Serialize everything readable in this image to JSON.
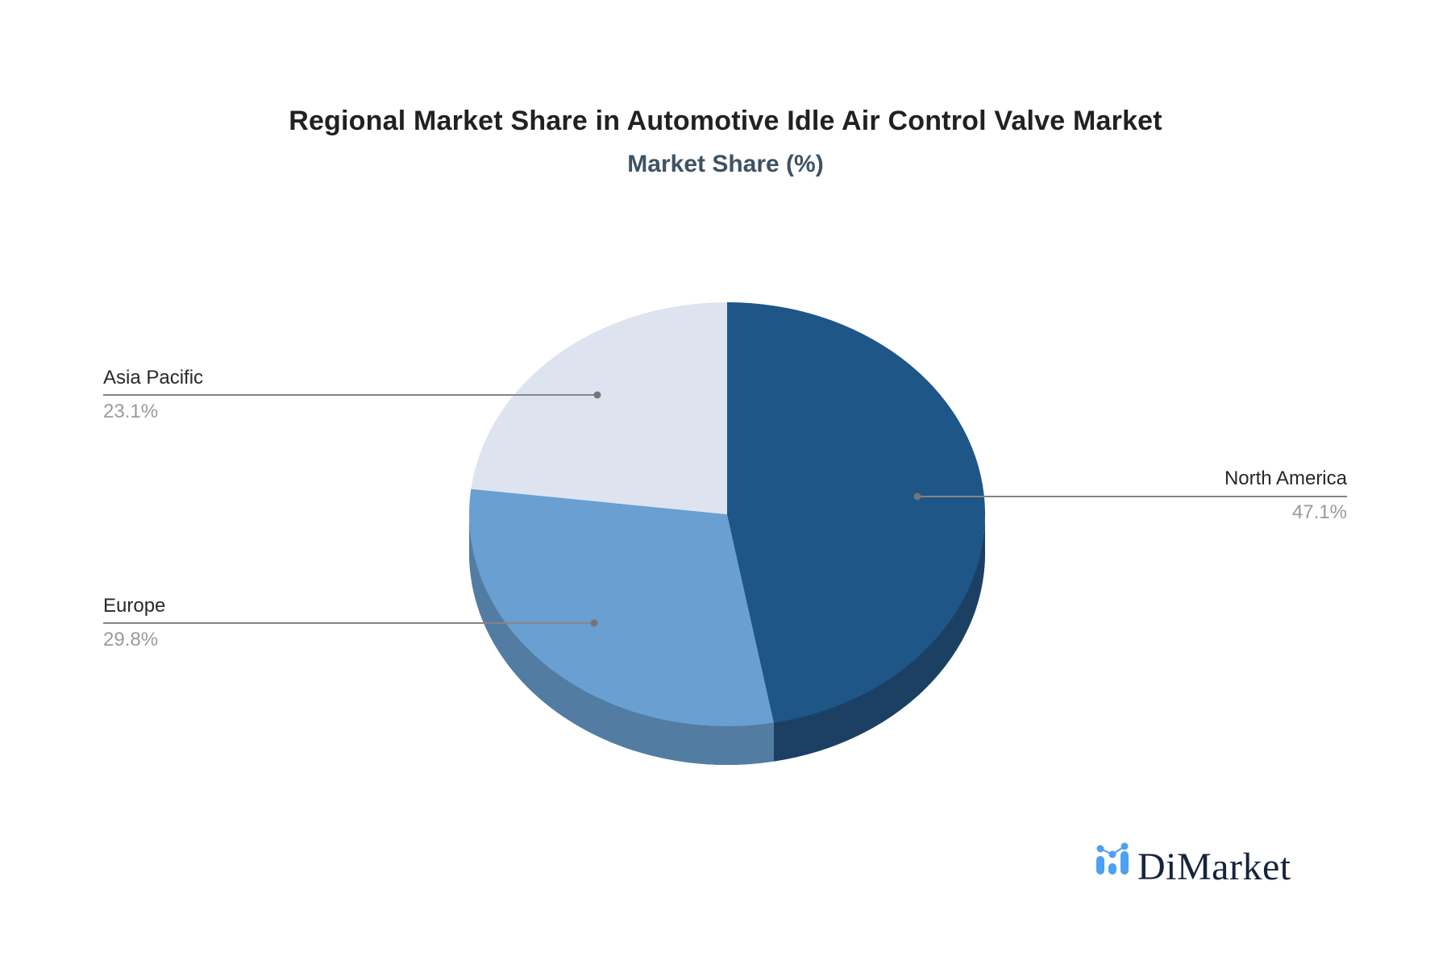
{
  "chart_data": {
    "type": "pie",
    "title": "Regional Market Share in Automotive Idle Air Control Valve Market",
    "subtitle": "Market Share (%)",
    "unit": "%",
    "style": "3d",
    "direction": "clockwise",
    "start_angle": "top",
    "legend": "none",
    "slices": [
      {
        "label": "North America",
        "value": 47.1,
        "display": "47.1%",
        "color": "#1E5687",
        "side_color": "#1C4064"
      },
      {
        "label": "Europe",
        "value": 29.8,
        "display": "29.8%",
        "color": "#699FD1",
        "side_color": "#537CA3"
      },
      {
        "label": "Asia Pacific",
        "value": 23.1,
        "display": "23.1%",
        "color": "#DEE4EF",
        "side_color": "#B9C3D6"
      }
    ],
    "label_text_color": "#282828",
    "value_text_color": "#9A9A9A",
    "leader_line_color": "#858585",
    "leader_dot_color": "#757575"
  },
  "branding": {
    "logo_text": "DiMarket",
    "logo_color": "#16243C",
    "logo_icon": "bar-chart-with-dots",
    "logo_icon_color": "#4DA0F2"
  }
}
